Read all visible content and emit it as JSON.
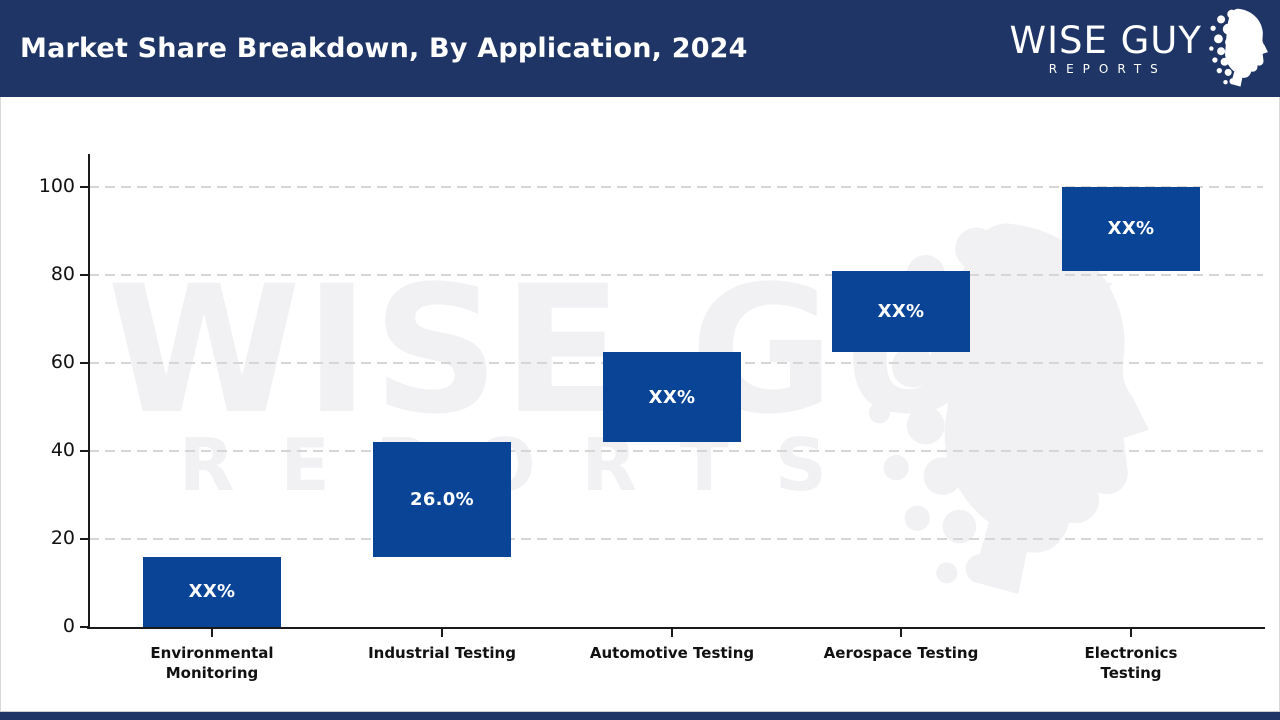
{
  "header": {
    "title": "Market Share Breakdown, By Application, 2024",
    "logo": {
      "line1": "WISE GUY",
      "line2": "REPORTS"
    },
    "bg_color": "#1e3565"
  },
  "watermark": {
    "line1": "WISE GUY",
    "line2": "REPORTS"
  },
  "footer": {
    "bg_color": "#1e3565"
  },
  "chart_data": {
    "type": "bar",
    "subtype": "waterfall",
    "title": "Market Share Breakdown, By Application, 2024",
    "categories": [
      "Environmental Monitoring",
      "Industrial Testing",
      "Automotive Testing",
      "Aerospace Testing",
      "Electronics Testing"
    ],
    "category_lines": [
      [
        "Environmental",
        "Monitoring"
      ],
      [
        "Industrial Testing"
      ],
      [
        "Automotive Testing"
      ],
      [
        "Aerospace Testing"
      ],
      [
        "Electronics",
        "Testing"
      ]
    ],
    "segments": [
      {
        "start": 0,
        "end": 16
      },
      {
        "start": 16,
        "end": 42
      },
      {
        "start": 42,
        "end": 62.5
      },
      {
        "start": 62.5,
        "end": 81
      },
      {
        "start": 81,
        "end": 100
      }
    ],
    "values": [
      16,
      26.0,
      20.5,
      18.5,
      19
    ],
    "bar_labels": [
      "XX%",
      "26.0%",
      "XX%",
      "XX%",
      "XX%"
    ],
    "y_ticks": [
      0,
      20,
      40,
      60,
      80,
      100
    ],
    "ylim": [
      0,
      107
    ],
    "xlabel": "",
    "ylabel": "",
    "bar_color": "#0a4497",
    "grid": true,
    "grid_style": "dashed",
    "grid_color": "#d6d6d6",
    "axis_color": "#1a1a1a",
    "legend": "none"
  }
}
